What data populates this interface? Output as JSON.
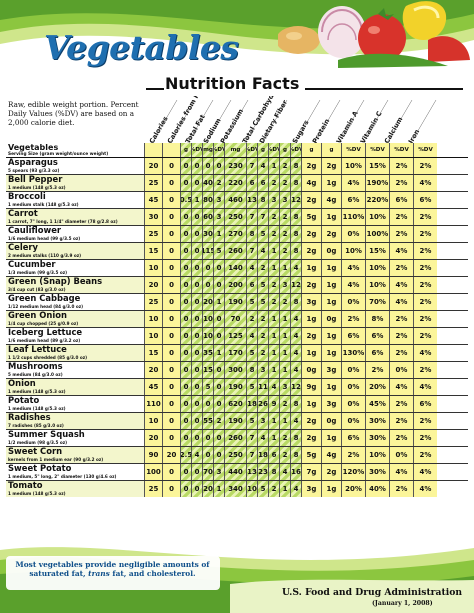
{
  "header": {
    "title": "Vegetables",
    "subtitle": "Nutrition Facts"
  },
  "intro": "Raw, edible weight portion. Percent Daily Values (%DV) are based on a 2,000 calorie diet.",
  "table": {
    "name_header": "Vegetables",
    "name_subheader": "Serving Size (gram weight/ounce weight)",
    "column_headers": [
      "Calories",
      "Calories from Fat",
      "Total Fat",
      "Sodium",
      "Potassium",
      "Total Carbohydrate",
      "Dietary Fiber",
      "Sugars",
      "Protein",
      "Vitamin A",
      "Vitamin C",
      "Calcium",
      "Iron"
    ],
    "unit_row": [
      "",
      "",
      "g",
      "%DV",
      "mg",
      "%DV",
      "mg",
      "%DV",
      "g",
      "%DV",
      "g",
      "%DV",
      "g",
      "g",
      "%DV",
      "%DV",
      "%DV",
      "%DV"
    ],
    "rows": [
      {
        "name": "Asparagus",
        "serving": "5 spears (93 g/3.3 oz)",
        "cal": "20",
        "calfat": "0",
        "fat_g": "0",
        "fat_dv": "0",
        "sod_mg": "0",
        "sod_dv": "0",
        "pot_mg": "230",
        "pot_dv": "7",
        "carb_g": "4",
        "carb_dv": "1",
        "fib_g": "2",
        "fib_dv": "8",
        "sugars": "2g",
        "protein": "2g",
        "vita": "10%",
        "vitc": "15%",
        "calcium": "2%",
        "iron": "2%"
      },
      {
        "name": "Bell Pepper",
        "serving": "1 medium (148 g/5.3 oz)",
        "cal": "25",
        "calfat": "0",
        "fat_g": "0",
        "fat_dv": "0",
        "sod_mg": "40",
        "sod_dv": "2",
        "pot_mg": "220",
        "pot_dv": "6",
        "carb_g": "6",
        "carb_dv": "2",
        "fib_g": "2",
        "fib_dv": "8",
        "sugars": "4g",
        "protein": "1g",
        "vita": "4%",
        "vitc": "190%",
        "calcium": "2%",
        "iron": "4%"
      },
      {
        "name": "Broccoli",
        "serving": "1 medium stalk (148 g/5.3 oz)",
        "cal": "45",
        "calfat": "0",
        "fat_g": "0.5",
        "fat_dv": "1",
        "sod_mg": "80",
        "sod_dv": "3",
        "pot_mg": "460",
        "pot_dv": "13",
        "carb_g": "8",
        "carb_dv": "3",
        "fib_g": "3",
        "fib_dv": "12",
        "sugars": "2g",
        "protein": "4g",
        "vita": "6%",
        "vitc": "220%",
        "calcium": "6%",
        "iron": "6%"
      },
      {
        "name": "Carrot",
        "serving": "1 carrot, 7\" long, 1 1/4\" diameter (78 g/2.8 oz)",
        "cal": "30",
        "calfat": "0",
        "fat_g": "0",
        "fat_dv": "0",
        "sod_mg": "60",
        "sod_dv": "3",
        "pot_mg": "250",
        "pot_dv": "7",
        "carb_g": "7",
        "carb_dv": "2",
        "fib_g": "2",
        "fib_dv": "8",
        "sugars": "5g",
        "protein": "1g",
        "vita": "110%",
        "vitc": "10%",
        "calcium": "2%",
        "iron": "2%"
      },
      {
        "name": "Cauliflower",
        "serving": "1/6 medium head (99 g/3.5 oz)",
        "cal": "25",
        "calfat": "0",
        "fat_g": "0",
        "fat_dv": "0",
        "sod_mg": "30",
        "sod_dv": "1",
        "pot_mg": "270",
        "pot_dv": "8",
        "carb_g": "5",
        "carb_dv": "2",
        "fib_g": "2",
        "fib_dv": "8",
        "sugars": "2g",
        "protein": "2g",
        "vita": "0%",
        "vitc": "100%",
        "calcium": "2%",
        "iron": "2%"
      },
      {
        "name": "Celery",
        "serving": "2 medium stalks (110 g/3.9 oz)",
        "cal": "15",
        "calfat": "0",
        "fat_g": "0",
        "fat_dv": "0",
        "sod_mg": "115",
        "sod_dv": "5",
        "pot_mg": "260",
        "pot_dv": "7",
        "carb_g": "4",
        "carb_dv": "1",
        "fib_g": "2",
        "fib_dv": "8",
        "sugars": "2g",
        "protein": "0g",
        "vita": "10%",
        "vitc": "15%",
        "calcium": "4%",
        "iron": "2%"
      },
      {
        "name": "Cucumber",
        "serving": "1/3 medium (99 g/3.5 oz)",
        "cal": "10",
        "calfat": "0",
        "fat_g": "0",
        "fat_dv": "0",
        "sod_mg": "0",
        "sod_dv": "0",
        "pot_mg": "140",
        "pot_dv": "4",
        "carb_g": "2",
        "carb_dv": "1",
        "fib_g": "1",
        "fib_dv": "4",
        "sugars": "1g",
        "protein": "1g",
        "vita": "4%",
        "vitc": "10%",
        "calcium": "2%",
        "iron": "2%"
      },
      {
        "name": "Green (Snap) Beans",
        "serving": "3/4 cup cut (83 g/3.0 oz)",
        "cal": "20",
        "calfat": "0",
        "fat_g": "0",
        "fat_dv": "0",
        "sod_mg": "0",
        "sod_dv": "0",
        "pot_mg": "200",
        "pot_dv": "6",
        "carb_g": "5",
        "carb_dv": "2",
        "fib_g": "3",
        "fib_dv": "12",
        "sugars": "2g",
        "protein": "1g",
        "vita": "4%",
        "vitc": "10%",
        "calcium": "4%",
        "iron": "2%"
      },
      {
        "name": "Green Cabbage",
        "serving": "1/12 medium head (84 g/3.0 oz)",
        "cal": "25",
        "calfat": "0",
        "fat_g": "0",
        "fat_dv": "0",
        "sod_mg": "20",
        "sod_dv": "1",
        "pot_mg": "190",
        "pot_dv": "5",
        "carb_g": "5",
        "carb_dv": "2",
        "fib_g": "2",
        "fib_dv": "8",
        "sugars": "3g",
        "protein": "1g",
        "vita": "0%",
        "vitc": "70%",
        "calcium": "4%",
        "iron": "2%"
      },
      {
        "name": "Green Onion",
        "serving": "1/4 cup chopped (25 g/0.9 oz)",
        "cal": "10",
        "calfat": "0",
        "fat_g": "0",
        "fat_dv": "0",
        "sod_mg": "10",
        "sod_dv": "0",
        "pot_mg": "70",
        "pot_dv": "2",
        "carb_g": "2",
        "carb_dv": "1",
        "fib_g": "1",
        "fib_dv": "4",
        "sugars": "1g",
        "protein": "0g",
        "vita": "2%",
        "vitc": "8%",
        "calcium": "2%",
        "iron": "2%"
      },
      {
        "name": "Iceberg Lettuce",
        "serving": "1/6 medium head (89 g/3.2 oz)",
        "cal": "10",
        "calfat": "0",
        "fat_g": "0",
        "fat_dv": "0",
        "sod_mg": "10",
        "sod_dv": "0",
        "pot_mg": "125",
        "pot_dv": "4",
        "carb_g": "2",
        "carb_dv": "1",
        "fib_g": "1",
        "fib_dv": "4",
        "sugars": "2g",
        "protein": "1g",
        "vita": "6%",
        "vitc": "6%",
        "calcium": "2%",
        "iron": "2%"
      },
      {
        "name": "Leaf Lettuce",
        "serving": "1 1/2 cups shredded (85 g/3.0 oz)",
        "cal": "15",
        "calfat": "0",
        "fat_g": "0",
        "fat_dv": "0",
        "sod_mg": "35",
        "sod_dv": "1",
        "pot_mg": "170",
        "pot_dv": "5",
        "carb_g": "2",
        "carb_dv": "1",
        "fib_g": "1",
        "fib_dv": "4",
        "sugars": "1g",
        "protein": "1g",
        "vita": "130%",
        "vitc": "6%",
        "calcium": "2%",
        "iron": "4%"
      },
      {
        "name": "Mushrooms",
        "serving": "5 medium (84 g/3.0 oz)",
        "cal": "20",
        "calfat": "0",
        "fat_g": "0",
        "fat_dv": "0",
        "sod_mg": "15",
        "sod_dv": "0",
        "pot_mg": "300",
        "pot_dv": "8",
        "carb_g": "3",
        "carb_dv": "1",
        "fib_g": "1",
        "fib_dv": "4",
        "sugars": "0g",
        "protein": "3g",
        "vita": "0%",
        "vitc": "2%",
        "calcium": "0%",
        "iron": "2%"
      },
      {
        "name": "Onion",
        "serving": "1 medium (148 g/5.3 oz)",
        "cal": "45",
        "calfat": "0",
        "fat_g": "0",
        "fat_dv": "0",
        "sod_mg": "5",
        "sod_dv": "0",
        "pot_mg": "190",
        "pot_dv": "5",
        "carb_g": "11",
        "carb_dv": "4",
        "fib_g": "3",
        "fib_dv": "12",
        "sugars": "9g",
        "protein": "1g",
        "vita": "0%",
        "vitc": "20%",
        "calcium": "4%",
        "iron": "4%"
      },
      {
        "name": "Potato",
        "serving": "1 medium (148 g/5.3 oz)",
        "cal": "110",
        "calfat": "0",
        "fat_g": "0",
        "fat_dv": "0",
        "sod_mg": "0",
        "sod_dv": "0",
        "pot_mg": "620",
        "pot_dv": "18",
        "carb_g": "26",
        "carb_dv": "9",
        "fib_g": "2",
        "fib_dv": "8",
        "sugars": "1g",
        "protein": "3g",
        "vita": "0%",
        "vitc": "45%",
        "calcium": "2%",
        "iron": "6%"
      },
      {
        "name": "Radishes",
        "serving": "7 radishes (85 g/3.0 oz)",
        "cal": "10",
        "calfat": "0",
        "fat_g": "0",
        "fat_dv": "0",
        "sod_mg": "55",
        "sod_dv": "2",
        "pot_mg": "190",
        "pot_dv": "5",
        "carb_g": "3",
        "carb_dv": "1",
        "fib_g": "1",
        "fib_dv": "4",
        "sugars": "2g",
        "protein": "0g",
        "vita": "0%",
        "vitc": "30%",
        "calcium": "2%",
        "iron": "2%"
      },
      {
        "name": "Summer Squash",
        "serving": "1/2 medium (98 g/3.5 oz)",
        "cal": "20",
        "calfat": "0",
        "fat_g": "0",
        "fat_dv": "0",
        "sod_mg": "0",
        "sod_dv": "0",
        "pot_mg": "260",
        "pot_dv": "7",
        "carb_g": "4",
        "carb_dv": "1",
        "fib_g": "2",
        "fib_dv": "8",
        "sugars": "2g",
        "protein": "1g",
        "vita": "6%",
        "vitc": "30%",
        "calcium": "2%",
        "iron": "2%"
      },
      {
        "name": "Sweet Corn",
        "serving": "kernels from 1 medium ear (90 g/3.2 oz)",
        "cal": "90",
        "calfat": "20",
        "fat_g": "2.5",
        "fat_dv": "4",
        "sod_mg": "0",
        "sod_dv": "0",
        "pot_mg": "250",
        "pot_dv": "7",
        "carb_g": "18",
        "carb_dv": "6",
        "fib_g": "2",
        "fib_dv": "8",
        "sugars": "5g",
        "protein": "4g",
        "vita": "2%",
        "vitc": "10%",
        "calcium": "0%",
        "iron": "2%"
      },
      {
        "name": "Sweet Potato",
        "serving": "1 medium, 5\" long, 2\" diameter (130 g/4.6 oz)",
        "cal": "100",
        "calfat": "0",
        "fat_g": "0",
        "fat_dv": "0",
        "sod_mg": "70",
        "sod_dv": "3",
        "pot_mg": "440",
        "pot_dv": "13",
        "carb_g": "23",
        "carb_dv": "8",
        "fib_g": "4",
        "fib_dv": "16",
        "sugars": "7g",
        "protein": "2g",
        "vita": "120%",
        "vitc": "30%",
        "calcium": "4%",
        "iron": "4%"
      },
      {
        "name": "Tomato",
        "serving": "1 medium (148 g/5.3 oz)",
        "cal": "25",
        "calfat": "0",
        "fat_g": "0",
        "fat_dv": "0",
        "sod_mg": "20",
        "sod_dv": "1",
        "pot_mg": "340",
        "pot_dv": "10",
        "carb_g": "5",
        "carb_dv": "2",
        "fib_g": "1",
        "fib_dv": "4",
        "sugars": "3g",
        "protein": "1g",
        "vita": "20%",
        "vitc": "40%",
        "calcium": "2%",
        "iron": "4%"
      }
    ]
  },
  "footnote": {
    "line1": "Most vegetables provide negligible amounts of",
    "line2_pre": "saturated fat, ",
    "line2_em": "trans",
    "line2_post": " fat, and cholesterol."
  },
  "footer": {
    "agency": "U.S. Food and Drug Administration",
    "date": "(January 1, 2008)"
  },
  "colors": {
    "title_blue": "#1f6fb0",
    "wave_green": "#8cc63f",
    "cell_yellow": "#fbf59a",
    "cell_green": "#c6e07a"
  }
}
